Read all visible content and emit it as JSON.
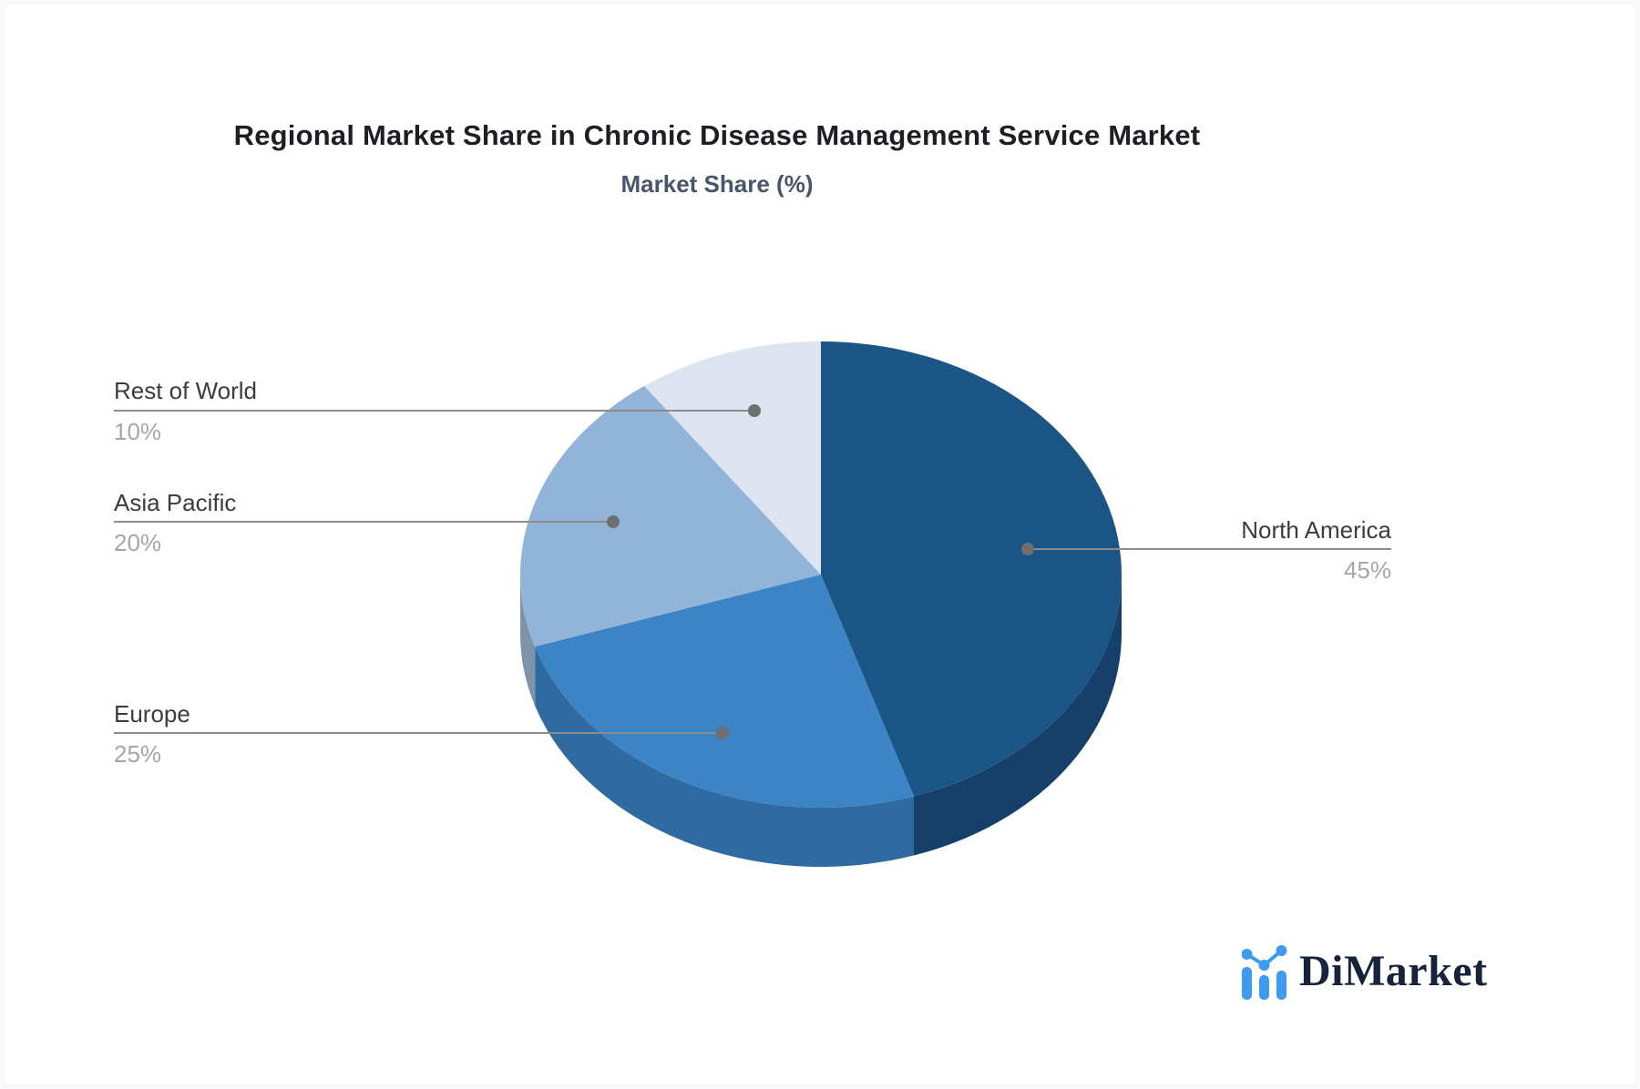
{
  "header": {
    "title": "Regional Market Share in Chronic Disease Management Service Market",
    "subtitle": "Market Share (%)"
  },
  "chart_data": {
    "type": "pie",
    "style": "3d-pie",
    "title": "Regional Market Share in Chronic Disease Management Service Market",
    "subtitle": "Market Share (%)",
    "unit": "%",
    "categories": [
      "North America",
      "Europe",
      "Asia Pacific",
      "Rest of World"
    ],
    "values": [
      45,
      25,
      20,
      10
    ],
    "start_angle_deg": 0,
    "direction": "clockwise",
    "colors": [
      "#1a5586",
      "#3b84c6",
      "#92b4d8",
      "#dde4ef"
    ],
    "side_colors": [
      "#16406a",
      "#2f6ba1",
      "#7e93a8",
      "#c9d2e0"
    ],
    "labels": [
      {
        "name": "North America",
        "value_text": "45%"
      },
      {
        "name": "Europe",
        "value_text": "25%"
      },
      {
        "name": "Asia Pacific",
        "value_text": "20%"
      },
      {
        "name": "Rest of World",
        "value_text": "10%"
      }
    ],
    "legend": "none",
    "grid": "off"
  },
  "branding": {
    "logo_text": "DiMarket",
    "logo_icon": "bar-line-chart-icon",
    "logo_icon_color": "#3e9bf0",
    "logo_text_color": "#17233a"
  }
}
